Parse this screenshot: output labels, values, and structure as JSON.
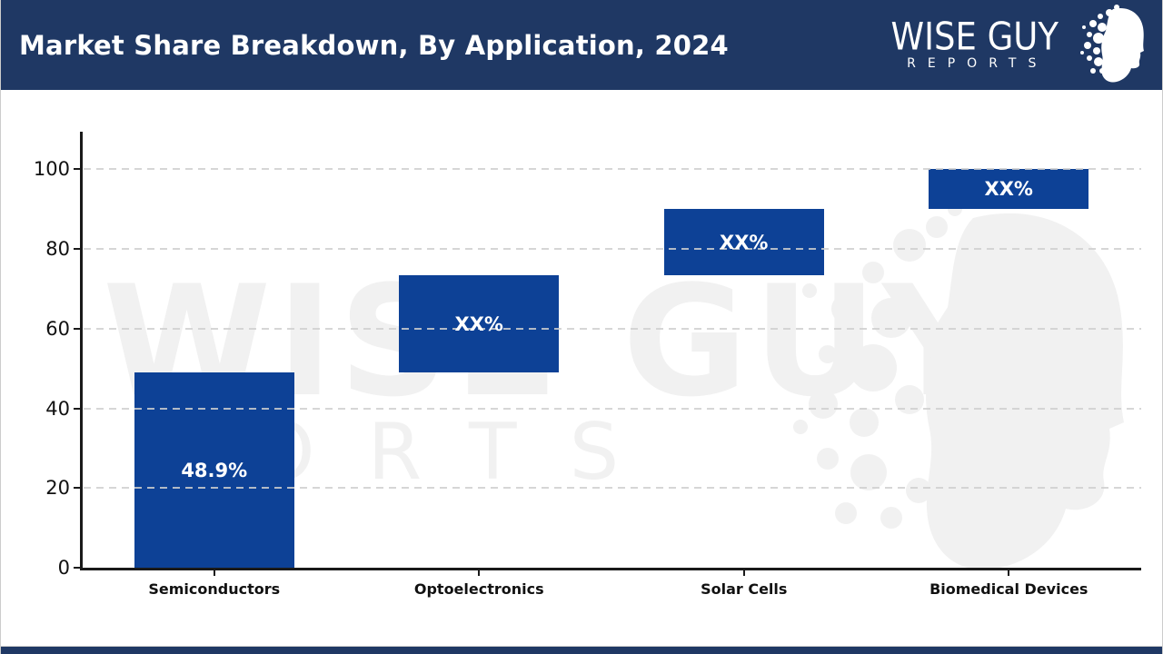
{
  "header": {
    "title": "Market Share Breakdown, By Application, 2024",
    "logo": {
      "line1": "WISE GUY",
      "line2": "REPORTS"
    }
  },
  "watermark": {
    "line1": "WISE GUY",
    "line2": "PORTS"
  },
  "footer": {},
  "colors": {
    "header_bg": "#1f3864",
    "footer_bg": "#1f3864",
    "bar": "#0d4196",
    "axis": "#1a1a1a",
    "grid": "#cfcfcf",
    "watermark": "#f1f1f1",
    "background": "#ffffff",
    "title_text": "#ffffff",
    "bar_label_text": "#ffffff"
  },
  "chart_data": {
    "type": "bar",
    "subtype": "waterfall",
    "title": "Market Share Breakdown, By Application, 2024",
    "xlabel": "",
    "ylabel": "",
    "categories": [
      "Semiconductors",
      "Optoelectronics",
      "Solar Cells",
      "Biomedical Devices"
    ],
    "segments": [
      {
        "category": "Semiconductors",
        "start": 0,
        "end": 48.9,
        "label": "48.9%"
      },
      {
        "category": "Optoelectronics",
        "start": 48.9,
        "end": 73.4,
        "label": "XX%"
      },
      {
        "category": "Solar Cells",
        "start": 73.4,
        "end": 90.0,
        "label": "XX%"
      },
      {
        "category": "Biomedical Devices",
        "start": 90.0,
        "end": 100.0,
        "label": "XX%"
      }
    ],
    "visible_labels": [
      "48.9%",
      "XX%",
      "XX%",
      "XX%"
    ],
    "yticks": [
      0,
      20,
      40,
      60,
      80,
      100
    ],
    "ylim": [
      0,
      106
    ],
    "grid": "horizontal-dashed",
    "legend": "none",
    "bar_color": "#0d4196"
  }
}
